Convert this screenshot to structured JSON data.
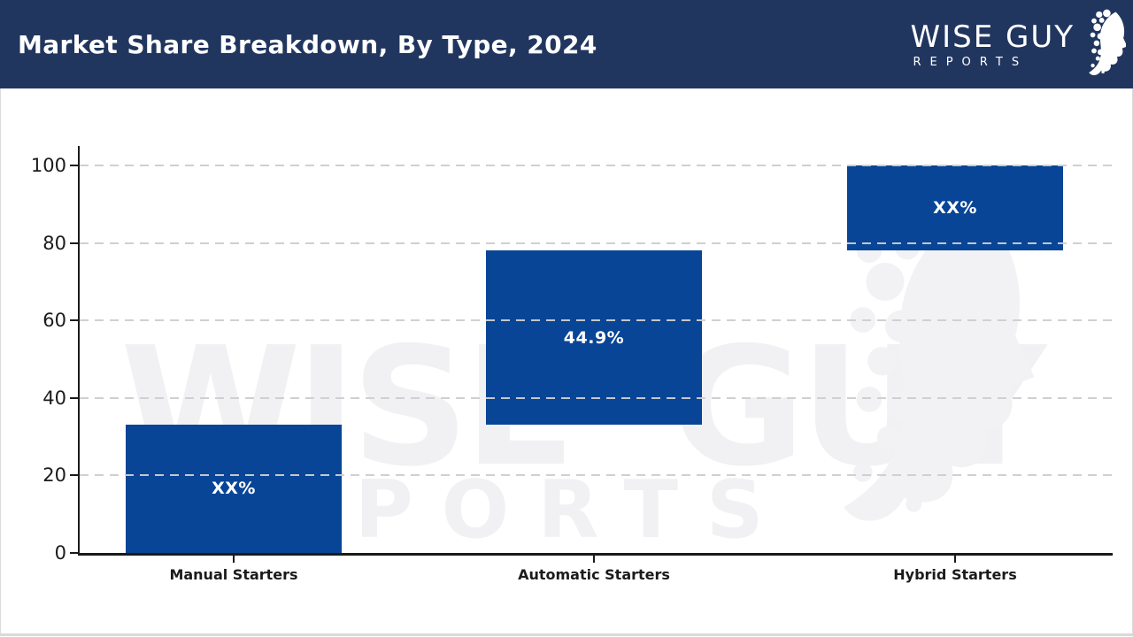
{
  "header": {
    "title": "Market Share Breakdown, By Type, 2024",
    "background": "#21365f",
    "logo": {
      "line1": "WISE GUY",
      "line2": "REPORTS"
    }
  },
  "watermark": {
    "line1": "WISE GUY",
    "line2": "REPORTS"
  },
  "chart_data": {
    "type": "bar",
    "subtype": "floating-waterfall",
    "title": "Market Share Breakdown, By Type, 2024",
    "categories": [
      "Manual Starters",
      "Automatic Starters",
      "Hybrid Starters"
    ],
    "segments": [
      {
        "category": "Manual Starters",
        "from": 0,
        "to": 33.1,
        "label": "XX%"
      },
      {
        "category": "Automatic Starters",
        "from": 33.1,
        "to": 78.0,
        "label": "44.9%"
      },
      {
        "category": "Hybrid Starters",
        "from": 78.0,
        "to": 100.0,
        "label": "XX%"
      }
    ],
    "known_values": {
      "Automatic Starters": 44.9
    },
    "yticks": [
      0,
      20,
      40,
      60,
      80,
      100
    ],
    "ylim": [
      0,
      105
    ],
    "xlabel": "",
    "ylabel": "",
    "bar_color": "#084596",
    "bar_label_color": "#ffffff",
    "grid": {
      "axis": "y",
      "style": "dashed",
      "color": "#cecece"
    },
    "legend": null
  }
}
